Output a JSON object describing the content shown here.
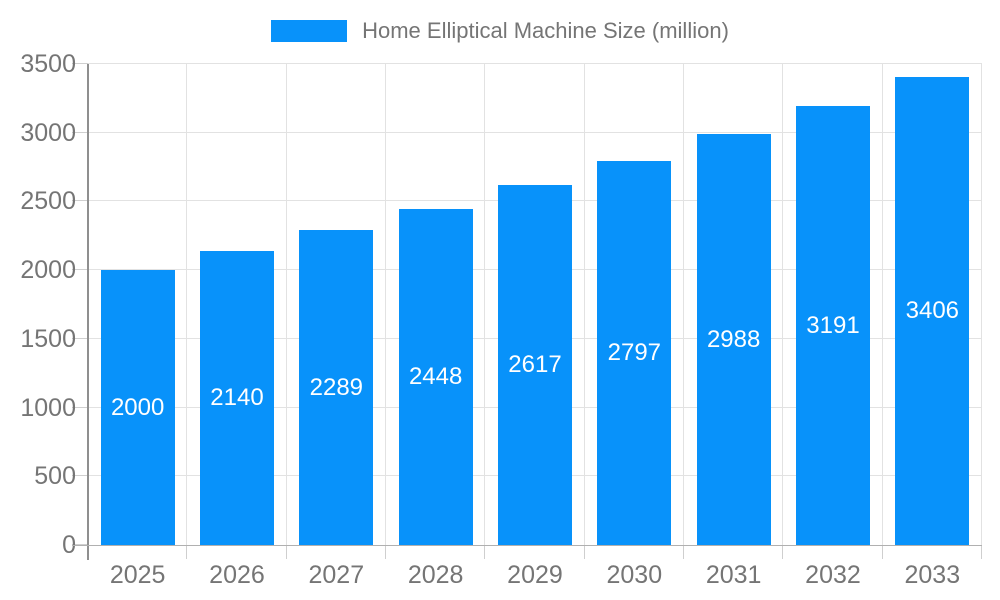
{
  "chart_data": {
    "type": "bar",
    "title": "Home Elliptical Machine Size (million)",
    "categories": [
      "2025",
      "2026",
      "2027",
      "2028",
      "2029",
      "2030",
      "2031",
      "2032",
      "2033"
    ],
    "values": [
      2000,
      2140,
      2289,
      2448,
      2617,
      2797,
      2988,
      3191,
      3406
    ],
    "series_name": "Home Elliptical Machine Size (million)",
    "xlabel": "",
    "ylabel": "",
    "ylim": [
      0,
      3500
    ],
    "yticks": [
      0,
      500,
      1000,
      1500,
      2000,
      2500,
      3000,
      3500
    ],
    "grid": true,
    "legend_position": "top-center",
    "value_label_position": "inside-center",
    "colors": {
      "bar": "#0892fa",
      "value_label": "#ffffff",
      "axis_text": "#757575",
      "grid_line": "#e2e2e2",
      "tick_line": "#cfcfcf",
      "y_axis_line": "#8f8f8f",
      "x_axis_line": "#b0b0b0",
      "background": "#ffffff"
    }
  }
}
